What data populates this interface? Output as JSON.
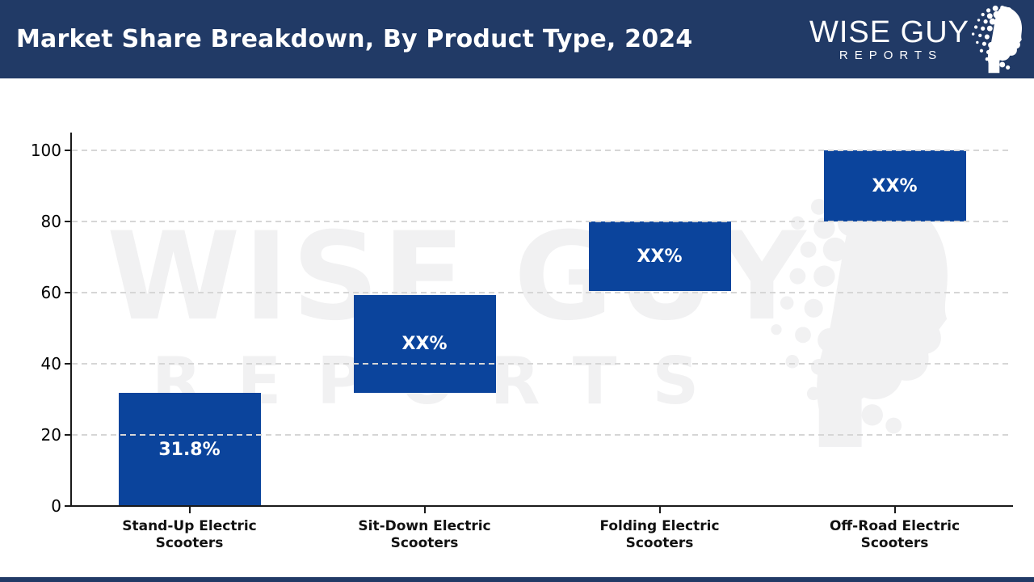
{
  "header": {
    "title": "Market Share Breakdown, By Product Type, 2024",
    "logo": {
      "name": "WISE GUY",
      "subtitle": "REPORTS",
      "face_icon": "dotted-head-profile-icon"
    }
  },
  "watermark": {
    "line1": "WISE GUY",
    "line2": "REPORTS",
    "face_icon": "dotted-head-profile-watermark"
  },
  "colors": {
    "header_bg": "#213a66",
    "footer_bg": "#213a66",
    "bar_fill": "#0b449c",
    "bar_label_text": "#ffffff",
    "grid_line": "#d6d6d6",
    "axis_line": "#1a1a1a",
    "watermark": "#f1f1f2",
    "page_bg": "#ffffff"
  },
  "chart_data": {
    "type": "bar",
    "subtype": "waterfall",
    "title": "Market Share Breakdown, By Product Type, 2024",
    "categories": [
      "Stand-Up Electric Scooters",
      "Sit-Down Electric Scooters",
      "Folding Electric Scooters",
      "Off-Road Electric Scooters"
    ],
    "segments": [
      {
        "category": "Stand-Up Electric Scooters",
        "from": 0,
        "to": 31.8,
        "label": "31.8%"
      },
      {
        "category": "Sit-Down Electric Scooters",
        "from": 31.8,
        "to": 59.4,
        "label": "XX%"
      },
      {
        "category": "Folding Electric Scooters",
        "from": 60.4,
        "to": 80,
        "label": "XX%"
      },
      {
        "category": "Off-Road Electric Scooters",
        "from": 80,
        "to": 100,
        "label": "XX%"
      }
    ],
    "xlabel": "",
    "ylabel": "",
    "ylim": [
      0,
      100
    ],
    "yticks": [
      0,
      20,
      40,
      60,
      80,
      100
    ],
    "grid": "dashed-horizontal",
    "legend": "none"
  }
}
